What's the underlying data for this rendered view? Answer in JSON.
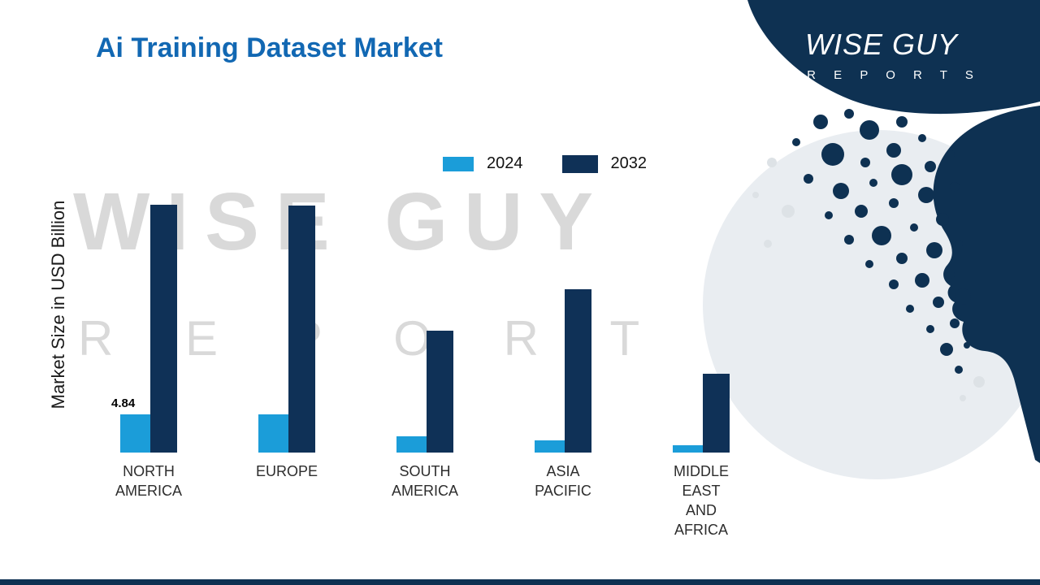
{
  "page": {
    "title": "Ai Training Dataset Market"
  },
  "watermark": {
    "line1": "WISE GUY",
    "line2": "R E P O R T S"
  },
  "logo": {
    "line1": "WISE GUY",
    "line2": "R E P O R T S"
  },
  "colors": {
    "title_blue": "#1268b3",
    "navy": "#0e3152",
    "light_blue": "#1b9dd9",
    "watermark_gray": "#d9d9d9",
    "background": "#ffffff"
  },
  "chart_data": {
    "type": "bar",
    "title": "Ai Training Dataset Market",
    "xlabel": "",
    "ylabel": "Market Size in USD Billion",
    "categories": [
      "NORTH AMERICA",
      "EUROPE",
      "SOUTH AMERICA",
      "ASIA PACIFIC",
      "MIDDLE EAST AND AFRICA"
    ],
    "category_lines": [
      [
        "NORTH",
        "AMERICA"
      ],
      [
        "EUROPE"
      ],
      [
        "SOUTH",
        "AMERICA"
      ],
      [
        "ASIA",
        "PACIFIC"
      ],
      [
        "MIDDLE",
        "EAST",
        "AND",
        "AFRICA"
      ]
    ],
    "series": [
      {
        "name": "2024",
        "color": "#1b9dd9",
        "values": [
          4.84,
          4.9,
          2.1,
          1.6,
          0.9
        ]
      },
      {
        "name": "2032",
        "color": "#0f3157",
        "values": [
          31.5,
          31.3,
          15.5,
          20.7,
          10.0
        ]
      }
    ],
    "annotations": [
      {
        "series": "2024",
        "category": "NORTH AMERICA",
        "text": "4.84"
      }
    ],
    "ylim": [
      0,
      32
    ],
    "grid": false,
    "legend_position": "top-center"
  }
}
